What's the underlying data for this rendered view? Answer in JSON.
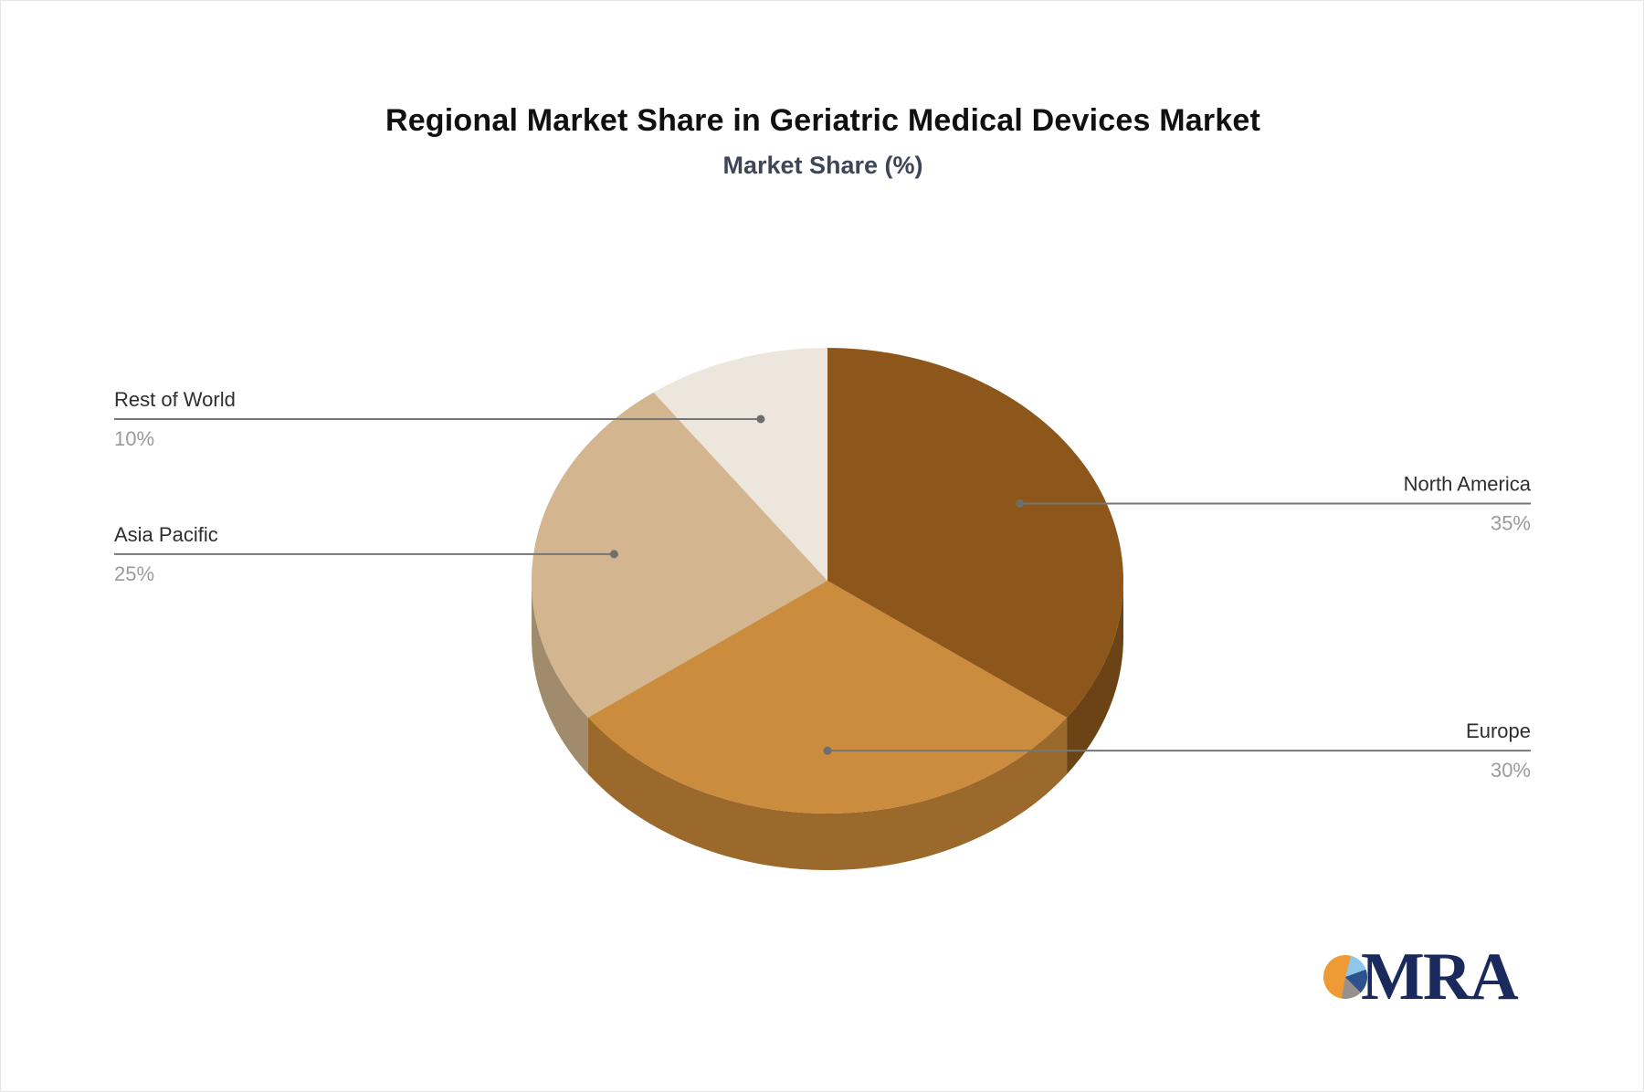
{
  "chart_data": {
    "type": "pie",
    "title": "Regional Market Share in Geriatric Medical Devices Market",
    "subtitle": "Market Share (%)",
    "unit": "%",
    "style": "3d",
    "direction": "clockwise",
    "start_angle_deg": 0,
    "slices": [
      {
        "label": "North America",
        "value": 35,
        "pct_label": "35%",
        "color": "#8D561B",
        "side_color": "#6B4314"
      },
      {
        "label": "Europe",
        "value": 30,
        "pct_label": "30%",
        "color": "#CC8C3E",
        "side_color": "#9A692B"
      },
      {
        "label": "Asia Pacific",
        "value": 25,
        "pct_label": "25%",
        "color": "#D3B58F",
        "side_color": "#A08B6C"
      },
      {
        "label": "Rest of World",
        "value": 10,
        "pct_label": "10%",
        "color": "#EDE6DD",
        "side_color": "#D9CFC2"
      }
    ],
    "title_color": "#101010",
    "subtitle_color": "#3E4656",
    "label_text_color": "#2E2E2E",
    "pct_text_color": "#9B9B9B",
    "connector_color": "#757575",
    "legend": "none",
    "grid": "off"
  },
  "logo": {
    "text": "MRA",
    "text_color": "#1A2A5C",
    "icon": "pie-chart-icon",
    "icon_colors": {
      "orange": "#F09A36",
      "light_blue": "#8EC7E9",
      "navy": "#2E528C",
      "gray": "#97918D"
    }
  }
}
